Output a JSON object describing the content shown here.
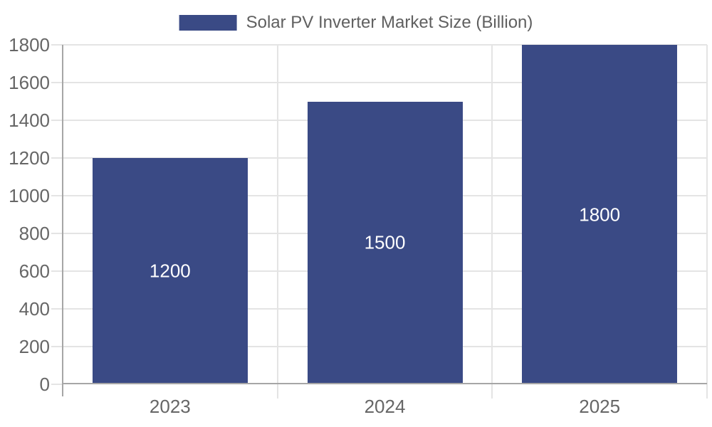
{
  "legend": {
    "label": "Solar PV Inverter Market Size (Billion)",
    "swatch_color": "#3A4A85"
  },
  "chart_data": {
    "type": "bar",
    "title": "Solar PV Inverter Market Size (Billion)",
    "categories": [
      "2023",
      "2024",
      "2025"
    ],
    "values": [
      1200,
      1500,
      1800
    ],
    "series": [
      {
        "name": "Solar PV Inverter Market Size (Billion)",
        "values": [
          1200,
          1500,
          1800
        ]
      }
    ],
    "xlabel": "",
    "ylabel": "",
    "ylim": [
      0,
      1800
    ],
    "yticks": [
      0,
      200,
      400,
      600,
      800,
      1000,
      1200,
      1400,
      1600,
      1800
    ],
    "grid": true,
    "legend_position": "top-center",
    "value_labels": "inside-center",
    "bar_color": "#3A4A85",
    "value_label_color": "#FFFFFF",
    "axis_label_color": "#666666",
    "gridline_color": "#E4E4E4",
    "axis_line_color": "#A6A6A6"
  }
}
